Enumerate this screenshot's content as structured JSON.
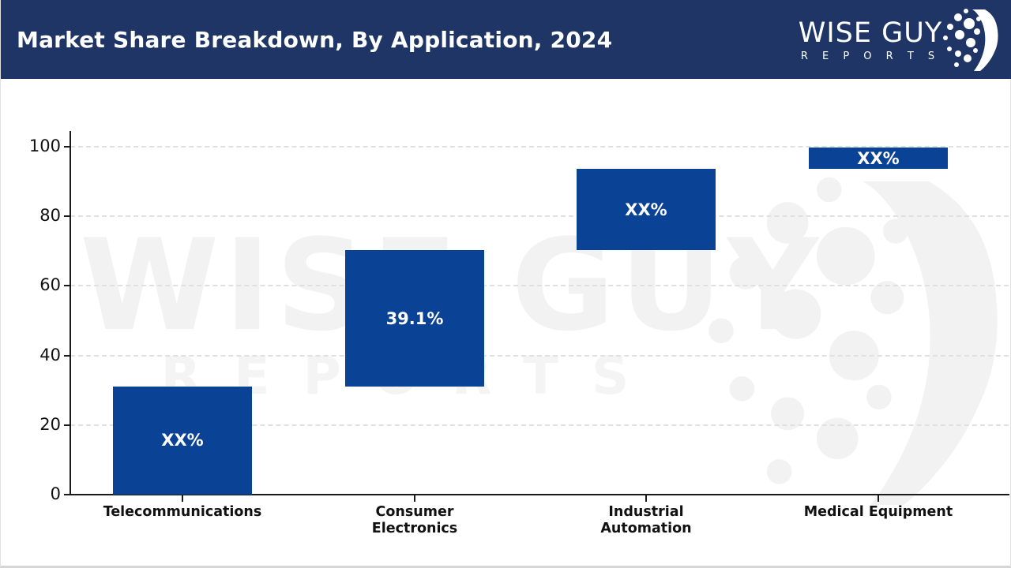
{
  "header": {
    "title": "Market Share Breakdown, By Application, 2024",
    "bg_color": "#1e3565",
    "logo": {
      "line1": "WISE GUY",
      "line2": "R E P O R T S"
    }
  },
  "watermark": {
    "line1": "WISE GUY",
    "line2": "REPORTS"
  },
  "chart_data": {
    "type": "bar",
    "subtype": "floating-waterfall",
    "title": "Market Share Breakdown, By Application, 2024",
    "categories": [
      "Telecommunications",
      "Consumer Electronics",
      "Industrial Automation",
      "Medical Equipment"
    ],
    "category_lines": [
      [
        "Telecommunications"
      ],
      [
        "Consumer",
        "Electronics"
      ],
      [
        "Industrial",
        "Automation"
      ],
      [
        "Medical Equipment"
      ]
    ],
    "segments": [
      {
        "category": "Telecommunications",
        "start": 0,
        "end": 31.1,
        "height": 31.1,
        "label": "XX%"
      },
      {
        "category": "Consumer Electronics",
        "start": 31.1,
        "end": 70.2,
        "height": 39.1,
        "label": "39.1%"
      },
      {
        "category": "Industrial Automation",
        "start": 70.2,
        "end": 93.6,
        "height": 23.4,
        "label": "XX%"
      },
      {
        "category": "Medical Equipment",
        "start": 93.6,
        "end": 99.8,
        "height": 6.2,
        "label": "XX%"
      }
    ],
    "xlabel": "",
    "ylabel": "",
    "ylim": [
      0,
      100
    ],
    "yticks": [
      0,
      20,
      40,
      60,
      80,
      100
    ],
    "grid": "horizontal-dashed",
    "legend": "none",
    "bar_color": "#0a4296",
    "bar_label_color": "#ffffff",
    "grid_color": "#e0e0e0",
    "axis_color": "#1a1a1a"
  }
}
